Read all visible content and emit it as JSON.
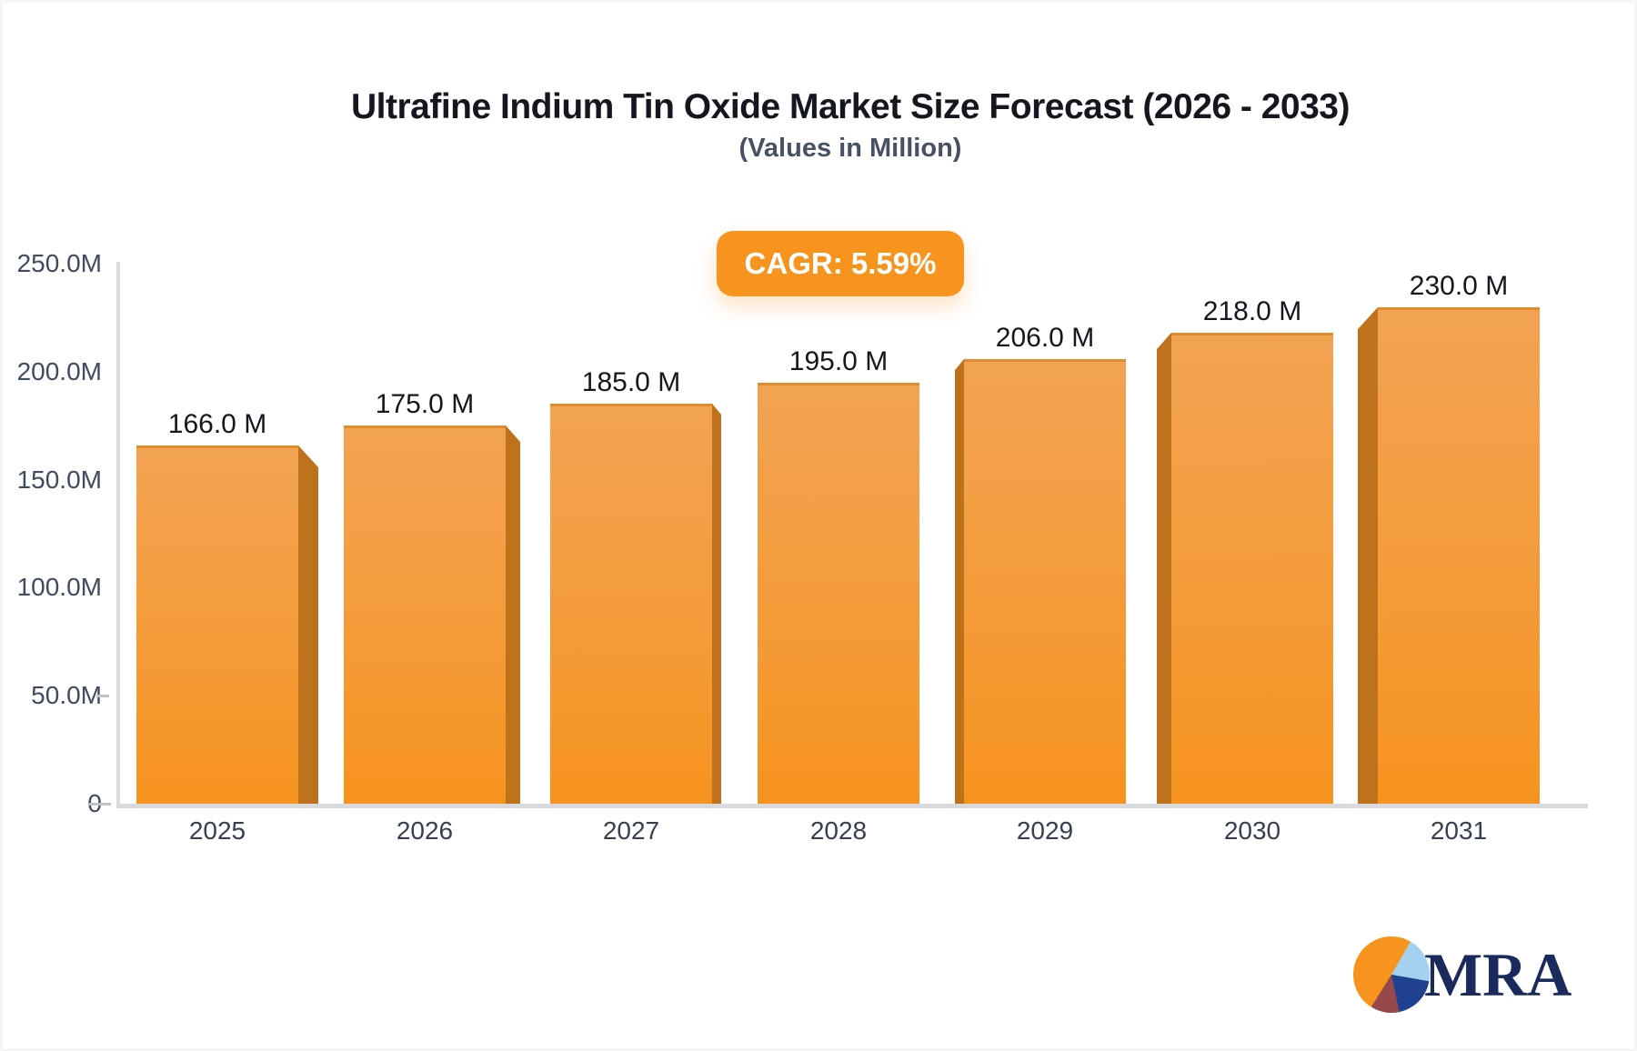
{
  "header": {
    "title": "Ultrafine Indium Tin Oxide Market Size Forecast (2026 - 2033)",
    "subtitle": "(Values in Million)"
  },
  "badge": {
    "label": "CAGR: 5.59%",
    "bg_color": "#F7941E"
  },
  "chart_data": {
    "type": "bar",
    "title": "Ultrafine Indium Tin Oxide Market Size Forecast (2026 - 2033)",
    "subtitle": "(Values in Million)",
    "unit": "Million",
    "categories": [
      "2025",
      "2026",
      "2027",
      "2028",
      "2029",
      "2030",
      "2031"
    ],
    "values": [
      166.0,
      175.0,
      185.0,
      195.0,
      206.0,
      218.0,
      230.0
    ],
    "bar_labels": [
      "166.0 M",
      "175.0 M",
      "185.0 M",
      "195.0 M",
      "206.0 M",
      "218.0 M",
      "230.0 M"
    ],
    "xlabel": "",
    "ylabel": "",
    "ylim": [
      0,
      250
    ],
    "yticks": [
      {
        "label": "250.0M",
        "value": 250
      },
      {
        "label": "200.0M",
        "value": 200
      },
      {
        "label": "150.0M",
        "value": 150
      },
      {
        "label": "100.0M",
        "value": 100
      },
      {
        "label": "50.0M",
        "value": 50
      },
      {
        "label": "0",
        "value": 0
      }
    ],
    "dash_ticks": [
      50,
      0
    ],
    "grid": false,
    "legend": null,
    "bar_face_color_top": "#F2A352",
    "bar_face_color_bottom": "#F6931F",
    "bar_side_color": "#BE721C",
    "style": "3d-extruded-bars-facing-center"
  },
  "logo": {
    "text": "MRA",
    "icon": "pie-chart-icon",
    "pie_colors": [
      "#F7941E",
      "#A5D1F0",
      "#20418F",
      "#96494A"
    ],
    "text_color": "#1A2A5C"
  }
}
